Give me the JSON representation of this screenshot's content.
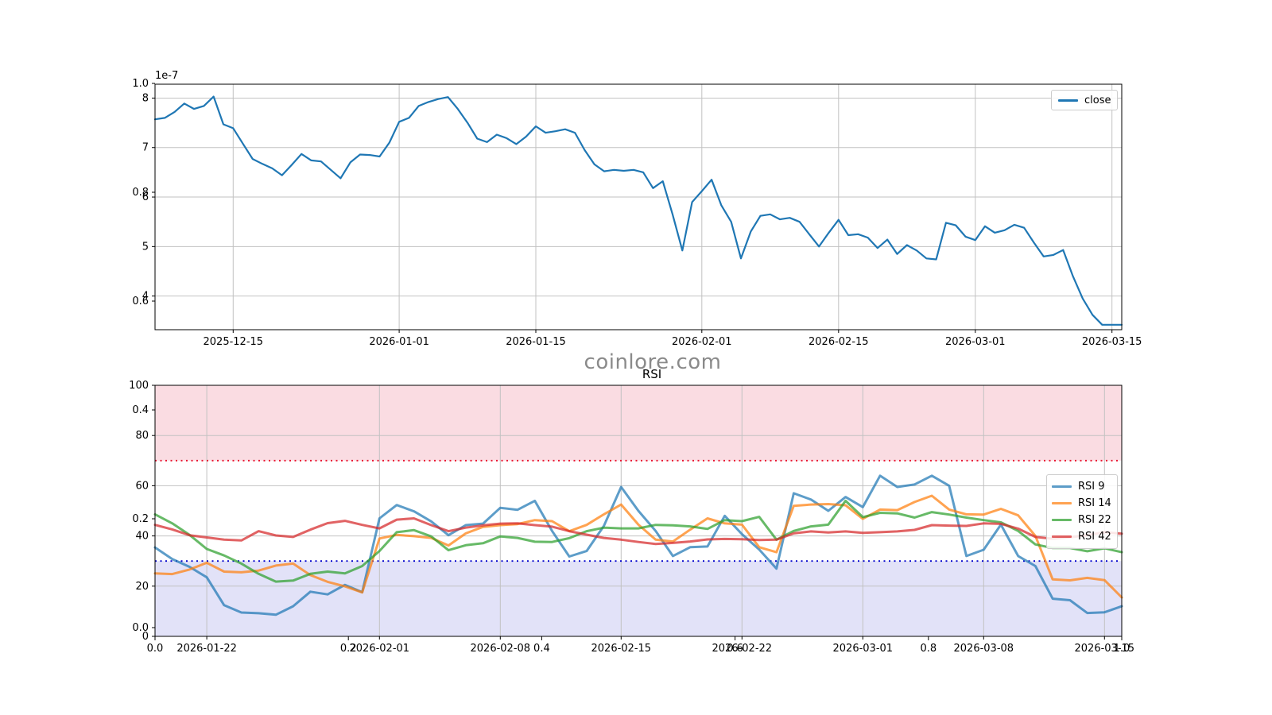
{
  "figure": {
    "watermark": "coinlore.com",
    "rsi_title": "RSI",
    "background": "#ffffff",
    "text_color": "#000000",
    "grid_color": "#c2c2c2",
    "spine_color": "#000000",
    "watermark_color": "#8a8a8a",
    "overlay_axis": {
      "x_tick_labels": [
        "0.0",
        "0.2",
        "0.4",
        "0.6",
        "0.8",
        "1.0"
      ],
      "y_tick_labels": [
        "1.0",
        "0.8",
        "0.6",
        "0.4",
        "0.2",
        "0.0"
      ]
    }
  },
  "chart_data": [
    {
      "type": "line",
      "name": "price",
      "offset_label": "1e-7",
      "ylabel": "",
      "xlabel": "",
      "grid": true,
      "legend_position": "upper right",
      "ylim": [
        3.32,
        8.28
      ],
      "yticks": [
        4,
        5,
        6,
        7,
        8
      ],
      "xticks": [
        "2025-12-15",
        "2026-01-01",
        "2026-01-15",
        "2026-02-01",
        "2026-02-15",
        "2026-03-01",
        "2026-03-15"
      ],
      "x": [
        "2025-12-07",
        "2025-12-08",
        "2025-12-09",
        "2025-12-10",
        "2025-12-11",
        "2025-12-12",
        "2025-12-13",
        "2025-12-14",
        "2025-12-15",
        "2025-12-16",
        "2025-12-17",
        "2025-12-18",
        "2025-12-19",
        "2025-12-20",
        "2025-12-21",
        "2025-12-22",
        "2025-12-23",
        "2025-12-24",
        "2025-12-25",
        "2025-12-26",
        "2025-12-27",
        "2025-12-28",
        "2025-12-29",
        "2025-12-30",
        "2025-12-31",
        "2026-01-01",
        "2026-01-02",
        "2026-01-03",
        "2026-01-04",
        "2026-01-05",
        "2026-01-06",
        "2026-01-07",
        "2026-01-08",
        "2026-01-09",
        "2026-01-10",
        "2026-01-11",
        "2026-01-12",
        "2026-01-13",
        "2026-01-14",
        "2026-01-15",
        "2026-01-16",
        "2026-01-17",
        "2026-01-18",
        "2026-01-19",
        "2026-01-20",
        "2026-01-21",
        "2026-01-22",
        "2026-01-23",
        "2026-01-24",
        "2026-01-25",
        "2026-01-26",
        "2026-01-27",
        "2026-01-28",
        "2026-01-29",
        "2026-01-30",
        "2026-01-31",
        "2026-02-01",
        "2026-02-02",
        "2026-02-03",
        "2026-02-04",
        "2026-02-05",
        "2026-02-06",
        "2026-02-07",
        "2026-02-08",
        "2026-02-09",
        "2026-02-10",
        "2026-02-11",
        "2026-02-12",
        "2026-02-13",
        "2026-02-14",
        "2026-02-15",
        "2026-02-16",
        "2026-02-17",
        "2026-02-18",
        "2026-02-19",
        "2026-02-20",
        "2026-02-21",
        "2026-02-22",
        "2026-02-23",
        "2026-02-24",
        "2026-02-25",
        "2026-02-26",
        "2026-02-27",
        "2026-02-28",
        "2026-03-01",
        "2026-03-02",
        "2026-03-03",
        "2026-03-04",
        "2026-03-05",
        "2026-03-06",
        "2026-03-07",
        "2026-03-08",
        "2026-03-09",
        "2026-03-10",
        "2026-03-11",
        "2026-03-12",
        "2026-03-13",
        "2026-03-14",
        "2026-03-15",
        "2026-03-16"
      ],
      "series": [
        {
          "name": "close",
          "color": "#1f77b4",
          "width": 2.2,
          "opacity": 1,
          "unit_multiplier": "1e-7",
          "values": [
            7.57,
            7.6,
            7.72,
            7.89,
            7.78,
            7.84,
            8.03,
            7.47,
            7.39,
            7.08,
            6.77,
            6.67,
            6.58,
            6.44,
            6.65,
            6.87,
            6.74,
            6.72,
            6.55,
            6.38,
            6.7,
            6.86,
            6.85,
            6.82,
            7.1,
            7.52,
            7.6,
            7.84,
            7.92,
            7.98,
            8.02,
            7.78,
            7.5,
            7.18,
            7.11,
            7.26,
            7.19,
            7.07,
            7.22,
            7.43,
            7.3,
            7.33,
            7.37,
            7.3,
            6.95,
            6.66,
            6.52,
            6.55,
            6.53,
            6.55,
            6.5,
            6.18,
            6.32,
            5.65,
            4.92,
            5.9,
            6.12,
            6.35,
            5.83,
            5.5,
            4.76,
            5.3,
            5.62,
            5.65,
            5.55,
            5.58,
            5.5,
            5.25,
            5.0,
            5.28,
            5.54,
            5.23,
            5.25,
            5.18,
            4.97,
            5.14,
            4.85,
            5.03,
            4.92,
            4.76,
            4.74,
            5.48,
            5.43,
            5.2,
            5.13,
            5.41,
            5.28,
            5.33,
            5.44,
            5.38,
            5.08,
            4.8,
            4.83,
            4.93,
            4.4,
            3.95,
            3.62,
            3.42,
            3.42,
            3.42
          ]
        }
      ]
    },
    {
      "type": "line",
      "name": "rsi",
      "title": "RSI",
      "grid": true,
      "legend_position": "right",
      "ylim": [
        0,
        100
      ],
      "yticks": [
        0,
        20,
        40,
        60,
        80,
        100
      ],
      "xticks": [
        "2026-01-22",
        "2026-02-01",
        "2026-02-08",
        "2026-02-15",
        "2026-02-22",
        "2026-03-01",
        "2026-03-08",
        "2026-03-15"
      ],
      "bands": [
        {
          "from": 70,
          "to": 100,
          "color": "#fadce2"
        },
        {
          "from": 0,
          "to": 30,
          "color": "#e2e2f8"
        }
      ],
      "hlines": [
        {
          "value": 70,
          "color": "#e8112d",
          "style": "dotted"
        },
        {
          "value": 30,
          "color": "#0000cc",
          "style": "dotted"
        }
      ],
      "x": [
        "2026-01-19",
        "2026-01-20",
        "2026-01-21",
        "2026-01-22",
        "2026-01-23",
        "2026-01-24",
        "2026-01-25",
        "2026-01-26",
        "2026-01-27",
        "2026-01-28",
        "2026-01-29",
        "2026-01-30",
        "2026-01-31",
        "2026-02-01",
        "2026-02-02",
        "2026-02-03",
        "2026-02-04",
        "2026-02-05",
        "2026-02-06",
        "2026-02-07",
        "2026-02-08",
        "2026-02-09",
        "2026-02-10",
        "2026-02-11",
        "2026-02-12",
        "2026-02-13",
        "2026-02-14",
        "2026-02-15",
        "2026-02-16",
        "2026-02-17",
        "2026-02-18",
        "2026-02-19",
        "2026-02-20",
        "2026-02-21",
        "2026-02-22",
        "2026-02-23",
        "2026-02-24",
        "2026-02-25",
        "2026-02-26",
        "2026-02-27",
        "2026-02-28",
        "2026-03-01",
        "2026-03-02",
        "2026-03-03",
        "2026-03-04",
        "2026-03-05",
        "2026-03-06",
        "2026-03-07",
        "2026-03-08",
        "2026-03-09",
        "2026-03-10",
        "2026-03-11",
        "2026-03-12",
        "2026-03-13",
        "2026-03-14",
        "2026-03-15",
        "2026-03-16"
      ],
      "series": [
        {
          "name": "RSI 9",
          "color": "#1f77b4",
          "width": 3,
          "opacity": 0.72,
          "values": [
            35.4,
            30.8,
            27.7,
            23.5,
            12.4,
            9.5,
            9.2,
            8.6,
            12,
            17.8,
            16.7,
            20.5,
            17.6,
            47,
            52.3,
            49.8,
            45.8,
            40.3,
            44.3,
            44.9,
            51.2,
            50.4,
            54,
            42,
            31.8,
            34,
            44,
            59.5,
            50,
            42,
            32,
            35.5,
            35.8,
            48,
            40.7,
            34.6,
            27,
            57,
            54.5,
            50,
            55.5,
            51.5,
            64,
            59.5,
            60.5,
            64,
            60,
            32,
            34.5,
            44.5,
            32,
            28,
            15,
            14.4,
            9.3,
            9.6,
            12
          ]
        },
        {
          "name": "RSI 14",
          "color": "#ff7f0e",
          "width": 3,
          "opacity": 0.72,
          "values": [
            25.1,
            24.8,
            26.6,
            29.3,
            25.8,
            25.5,
            26.2,
            28.2,
            29,
            24.4,
            21.7,
            19.9,
            17.5,
            39,
            40.4,
            39.9,
            39.2,
            36.2,
            41,
            43.6,
            44.3,
            44.7,
            46.3,
            45.9,
            41.9,
            44.4,
            48.6,
            52.5,
            44.5,
            38.5,
            37.8,
            42.5,
            47,
            45,
            44.5,
            35.5,
            33.5,
            52,
            52.5,
            52.7,
            52.2,
            46.8,
            50.5,
            50.3,
            53.5,
            56,
            50.5,
            48.6,
            48.5,
            50.8,
            48.2,
            40,
            22.7,
            22.3,
            23.3,
            22.4,
            15.5
          ]
        },
        {
          "name": "RSI 22",
          "color": "#2ca02c",
          "width": 3,
          "opacity": 0.72,
          "values": [
            48.6,
            45,
            40.4,
            34.8,
            32.2,
            29,
            24.9,
            21.8,
            22.2,
            24.9,
            25.8,
            25.1,
            28,
            34,
            41.5,
            42.3,
            39.8,
            34.3,
            36.3,
            37.1,
            39.8,
            39.2,
            37.7,
            37.6,
            39.1,
            41.9,
            43.3,
            43,
            43,
            44.4,
            44.2,
            43.8,
            42.8,
            46.3,
            45.9,
            47.6,
            38.5,
            42,
            43.8,
            44.5,
            54,
            47.5,
            49.2,
            49,
            47.3,
            49.5,
            48.5,
            47.3,
            46.3,
            45.4,
            42,
            36.6,
            35.2,
            35.2,
            33.9,
            35.1,
            33.5
          ]
        },
        {
          "name": "RSI 42",
          "color": "#d62728",
          "width": 3,
          "opacity": 0.72,
          "values": [
            44.4,
            42.6,
            40.3,
            39.4,
            38.5,
            38.2,
            41.9,
            40.2,
            39.6,
            42.5,
            45.1,
            46,
            44.4,
            43,
            46.5,
            47,
            44.3,
            41.9,
            43.3,
            44.2,
            44.9,
            45,
            44.3,
            43.7,
            41.9,
            40.5,
            39.2,
            38.5,
            37.6,
            36.8,
            37.2,
            37.8,
            38.6,
            38.8,
            38.7,
            38.4,
            38.5,
            41,
            41.8,
            41.4,
            41.8,
            41.2,
            41.5,
            41.8,
            42.4,
            44.3,
            44.1,
            44,
            45,
            44.8,
            42.9,
            39.6,
            38.9,
            39.5,
            40.3,
            41.5,
            40.9
          ]
        }
      ]
    }
  ]
}
